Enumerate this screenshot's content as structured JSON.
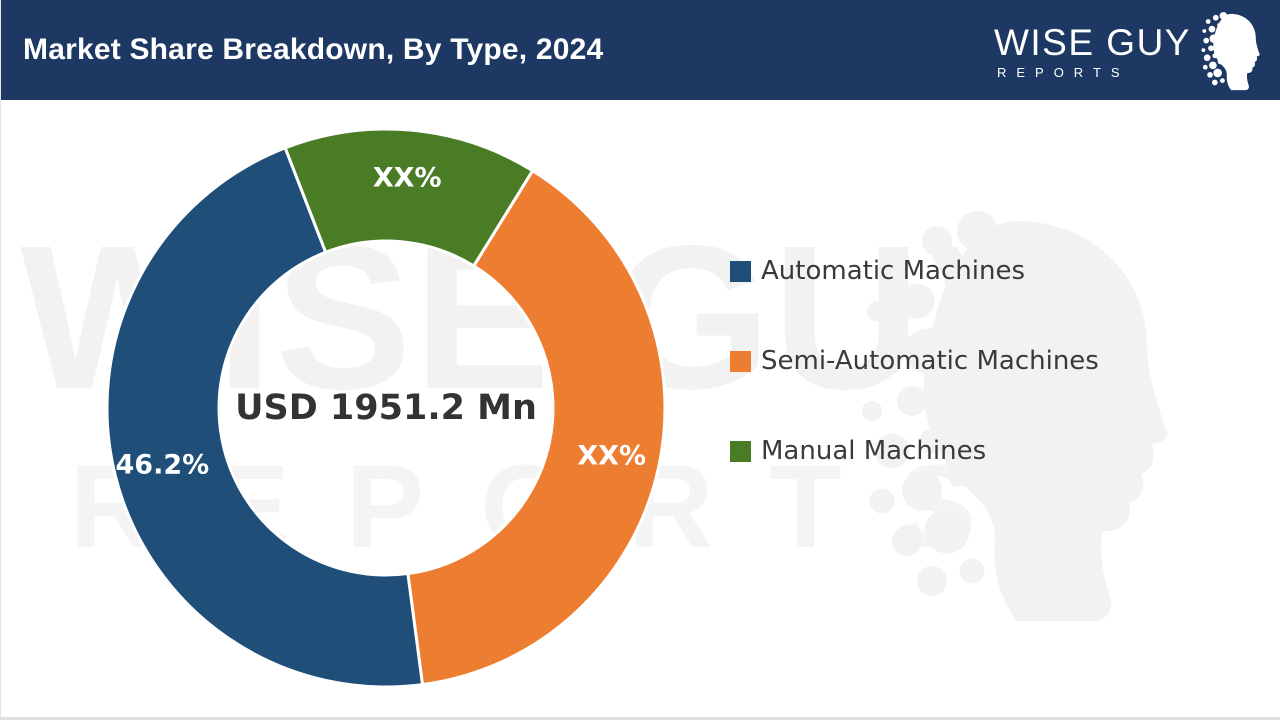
{
  "header": {
    "title": "Market Share Breakdown, By Type, 2024",
    "logo": {
      "name": "WISE GUY",
      "tagline": "REPORTS"
    }
  },
  "colors": {
    "header_bg": "#1E3864",
    "automatic_blue": "#1F4E79",
    "semi_automatic_orange": "#ED7D31",
    "manual_green": "#4A7C26",
    "watermark_gray": "#F2F2F2"
  },
  "chart_data": {
    "type": "pie",
    "variant": "donut",
    "title": "Market Share Breakdown, By Type, 2024",
    "center_label": "USD 1951.2 Mn",
    "start_angle_deg": -21.2,
    "direction": "clockwise",
    "inner_radius_ratio": 0.6,
    "segments": [
      {
        "name": "Manual Machines",
        "value_pct": 14.7,
        "display_label": "XX%",
        "color": "#4A7C26"
      },
      {
        "name": "Semi-Automatic Machines",
        "value_pct": 39.1,
        "display_label": "XX%",
        "color": "#ED7D31"
      },
      {
        "name": "Automatic Machines",
        "value_pct": 46.2,
        "display_label": "46.2%",
        "color": "#1F4E79"
      }
    ]
  },
  "legend": {
    "items": [
      {
        "label": "Automatic Machines",
        "color": "#1F4E79"
      },
      {
        "label": "Semi-Automatic Machines",
        "color": "#ED7D31"
      },
      {
        "label": "Manual Machines",
        "color": "#4A7C26"
      }
    ]
  },
  "watermark": {
    "line1": "WISE GUY",
    "line2": "REPORTS"
  }
}
